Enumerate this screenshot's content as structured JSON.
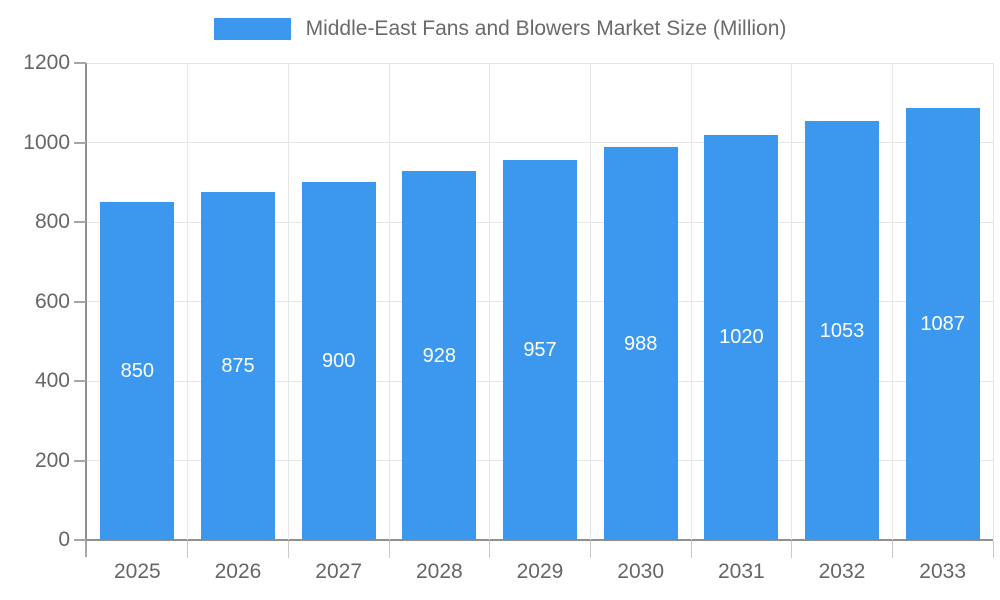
{
  "chart_data": {
    "type": "bar",
    "title": "Middle-East Fans and Blowers Market Size (Million)",
    "legend": {
      "label": "Middle-East Fans and Blowers Market Size (Million)",
      "position": "top"
    },
    "categories": [
      "2025",
      "2026",
      "2027",
      "2028",
      "2029",
      "2030",
      "2031",
      "2032",
      "2033"
    ],
    "series": [
      {
        "name": "Middle-East Fans and Blowers Market Size (Million)",
        "values": [
          850,
          875,
          900,
          928,
          957,
          988,
          1020,
          1053,
          1087
        ]
      }
    ],
    "bar_value_labels": [
      "850",
      "875",
      "900",
      "928",
      "957",
      "988",
      "1020",
      "1053",
      "1087"
    ],
    "xlabel": "",
    "ylabel": "",
    "ylim": [
      0,
      1200
    ],
    "ytick_step": 200,
    "yticks": [
      0,
      200,
      400,
      600,
      800,
      1000,
      1200
    ],
    "grid": true,
    "colors": {
      "bar": "#3b98ee",
      "bar_label": "#ffffff",
      "grid": "#e6e6e6",
      "axis": "#909090",
      "tick": "#c9c9c9",
      "axis_label": "#666666",
      "title": "#6a6a6a",
      "background": "#ffffff"
    }
  }
}
